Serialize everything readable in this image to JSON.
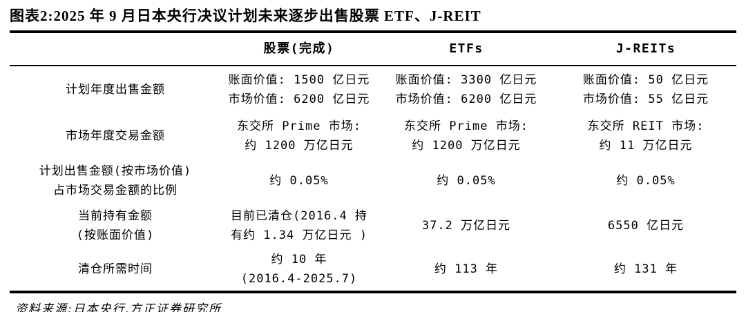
{
  "title": "图表2:2025 年 9 月日本央行决议计划未来逐步出售股票 ETF、J-REIT",
  "source": "资料来源:日本央行,方正证券研究所",
  "table": {
    "header": [
      "",
      "股票(完成)",
      "ETFs",
      "J-REITs"
    ],
    "rows": [
      {
        "label": "计划年度出售金额",
        "cells": [
          "账面价值: 1500 亿日元\n市场价值: 6200 亿日元",
          "账面价值: 3300 亿日元\n市场价值: 6200 亿日元",
          "账面价值: 50 亿日元\n市场价值: 55 亿日元"
        ]
      },
      {
        "label": "市场年度交易金额",
        "cells": [
          "东交所 Prime 市场:\n约 1200 万亿日元",
          "东交所 Prime 市场:\n约 1200 万亿日元",
          "东交所 REIT 市场:\n约 11 万亿日元"
        ]
      },
      {
        "label": "计划出售金额(按市场价值)\n占市场交易金额的比例",
        "cells": [
          "约 0.05%",
          "约 0.05%",
          "约 0.05%"
        ]
      },
      {
        "label": "当前持有金额\n(按账面价值)",
        "cells": [
          "目前已清仓(2016.4 持\n有约 1.34 万亿日元 )",
          "37.2 万亿日元",
          "6550 亿日元"
        ]
      },
      {
        "label": "清仓所需时间",
        "cells": [
          "约 10 年\n(2016.4-2025.7)",
          "约 113 年",
          "约 131 年"
        ]
      }
    ]
  }
}
